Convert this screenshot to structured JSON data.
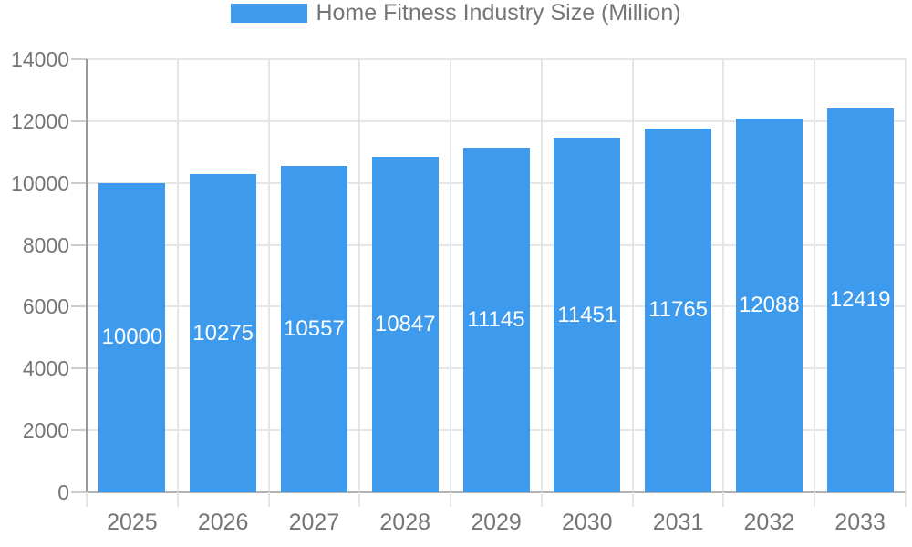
{
  "legend": {
    "label": "Home Fitness Industry Size (Million)",
    "position": "top"
  },
  "colors": {
    "bar": "#3E9AEC",
    "bar_label": "#FFFFFF",
    "axis_text": "#757575",
    "gridline": "#E6E6E6",
    "tick": "#CCCCCC",
    "axis_line": "#999999",
    "baseline": "#B3B3B3",
    "background": "#FFFFFF"
  },
  "chart_data": {
    "type": "bar",
    "categories": [
      "2025",
      "2026",
      "2027",
      "2028",
      "2029",
      "2030",
      "2031",
      "2032",
      "2033"
    ],
    "series": [
      {
        "name": "Home Fitness Industry Size (Million)",
        "values": [
          10000,
          10275,
          10557,
          10847,
          11145,
          11451,
          11765,
          12088,
          12419
        ]
      }
    ],
    "title": "",
    "xlabel": "",
    "ylabel": "",
    "ylim": [
      0,
      14000
    ],
    "y_ticks": [
      0,
      2000,
      4000,
      6000,
      8000,
      10000,
      12000,
      14000
    ],
    "grid": true,
    "category_separators": true,
    "bar_value_labels": "inside-center",
    "legend_position": "top"
  }
}
